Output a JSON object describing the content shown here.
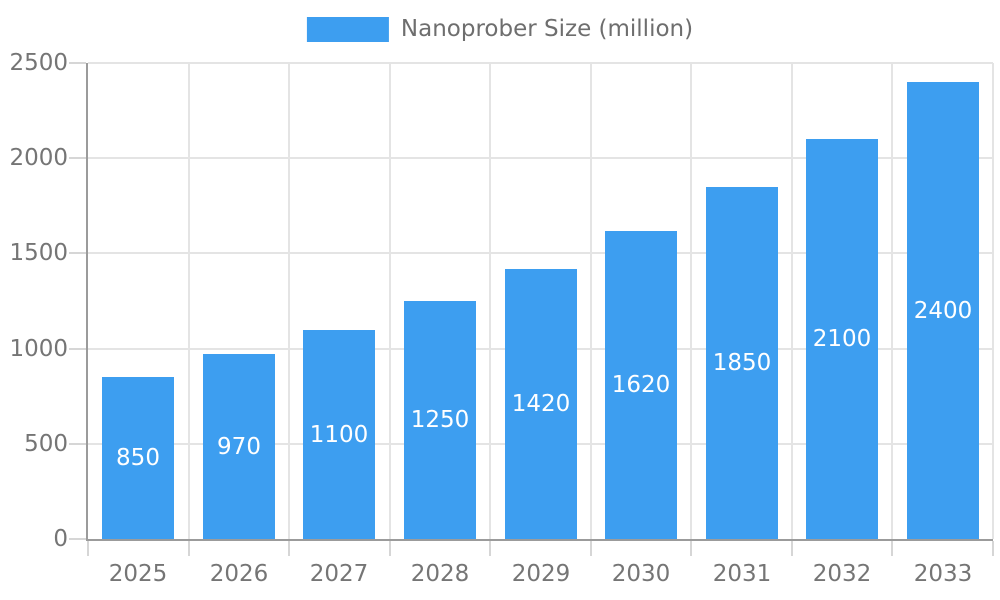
{
  "chart_data": {
    "type": "bar",
    "title": "",
    "legend": "Nanoprober Size (million)",
    "legend_position": "top-center",
    "categories": [
      "2025",
      "2026",
      "2027",
      "2028",
      "2029",
      "2030",
      "2031",
      "2032",
      "2033"
    ],
    "values": [
      850,
      970,
      1100,
      1250,
      1420,
      1620,
      1850,
      2100,
      2400
    ],
    "value_labels": [
      "850",
      "970",
      "1100",
      "1250",
      "1420",
      "1620",
      "1850",
      "2100",
      "2400"
    ],
    "xlabel": "",
    "ylabel": "",
    "ylim": [
      0,
      2500
    ],
    "yticks": [
      0,
      500,
      1000,
      1500,
      2000,
      2500
    ],
    "ytick_labels": [
      "0",
      "500",
      "1000",
      "1500",
      "2000",
      "2500"
    ],
    "grid": true
  },
  "colors": {
    "bar": "#3d9ef0",
    "grid": "#e4e4e4",
    "axis": "#9b9b9b",
    "tick": "#d6d6d6",
    "axis_label": "#757575",
    "legend_text": "#6e6e6e",
    "value_label": "#ffffff",
    "background": "#ffffff"
  }
}
